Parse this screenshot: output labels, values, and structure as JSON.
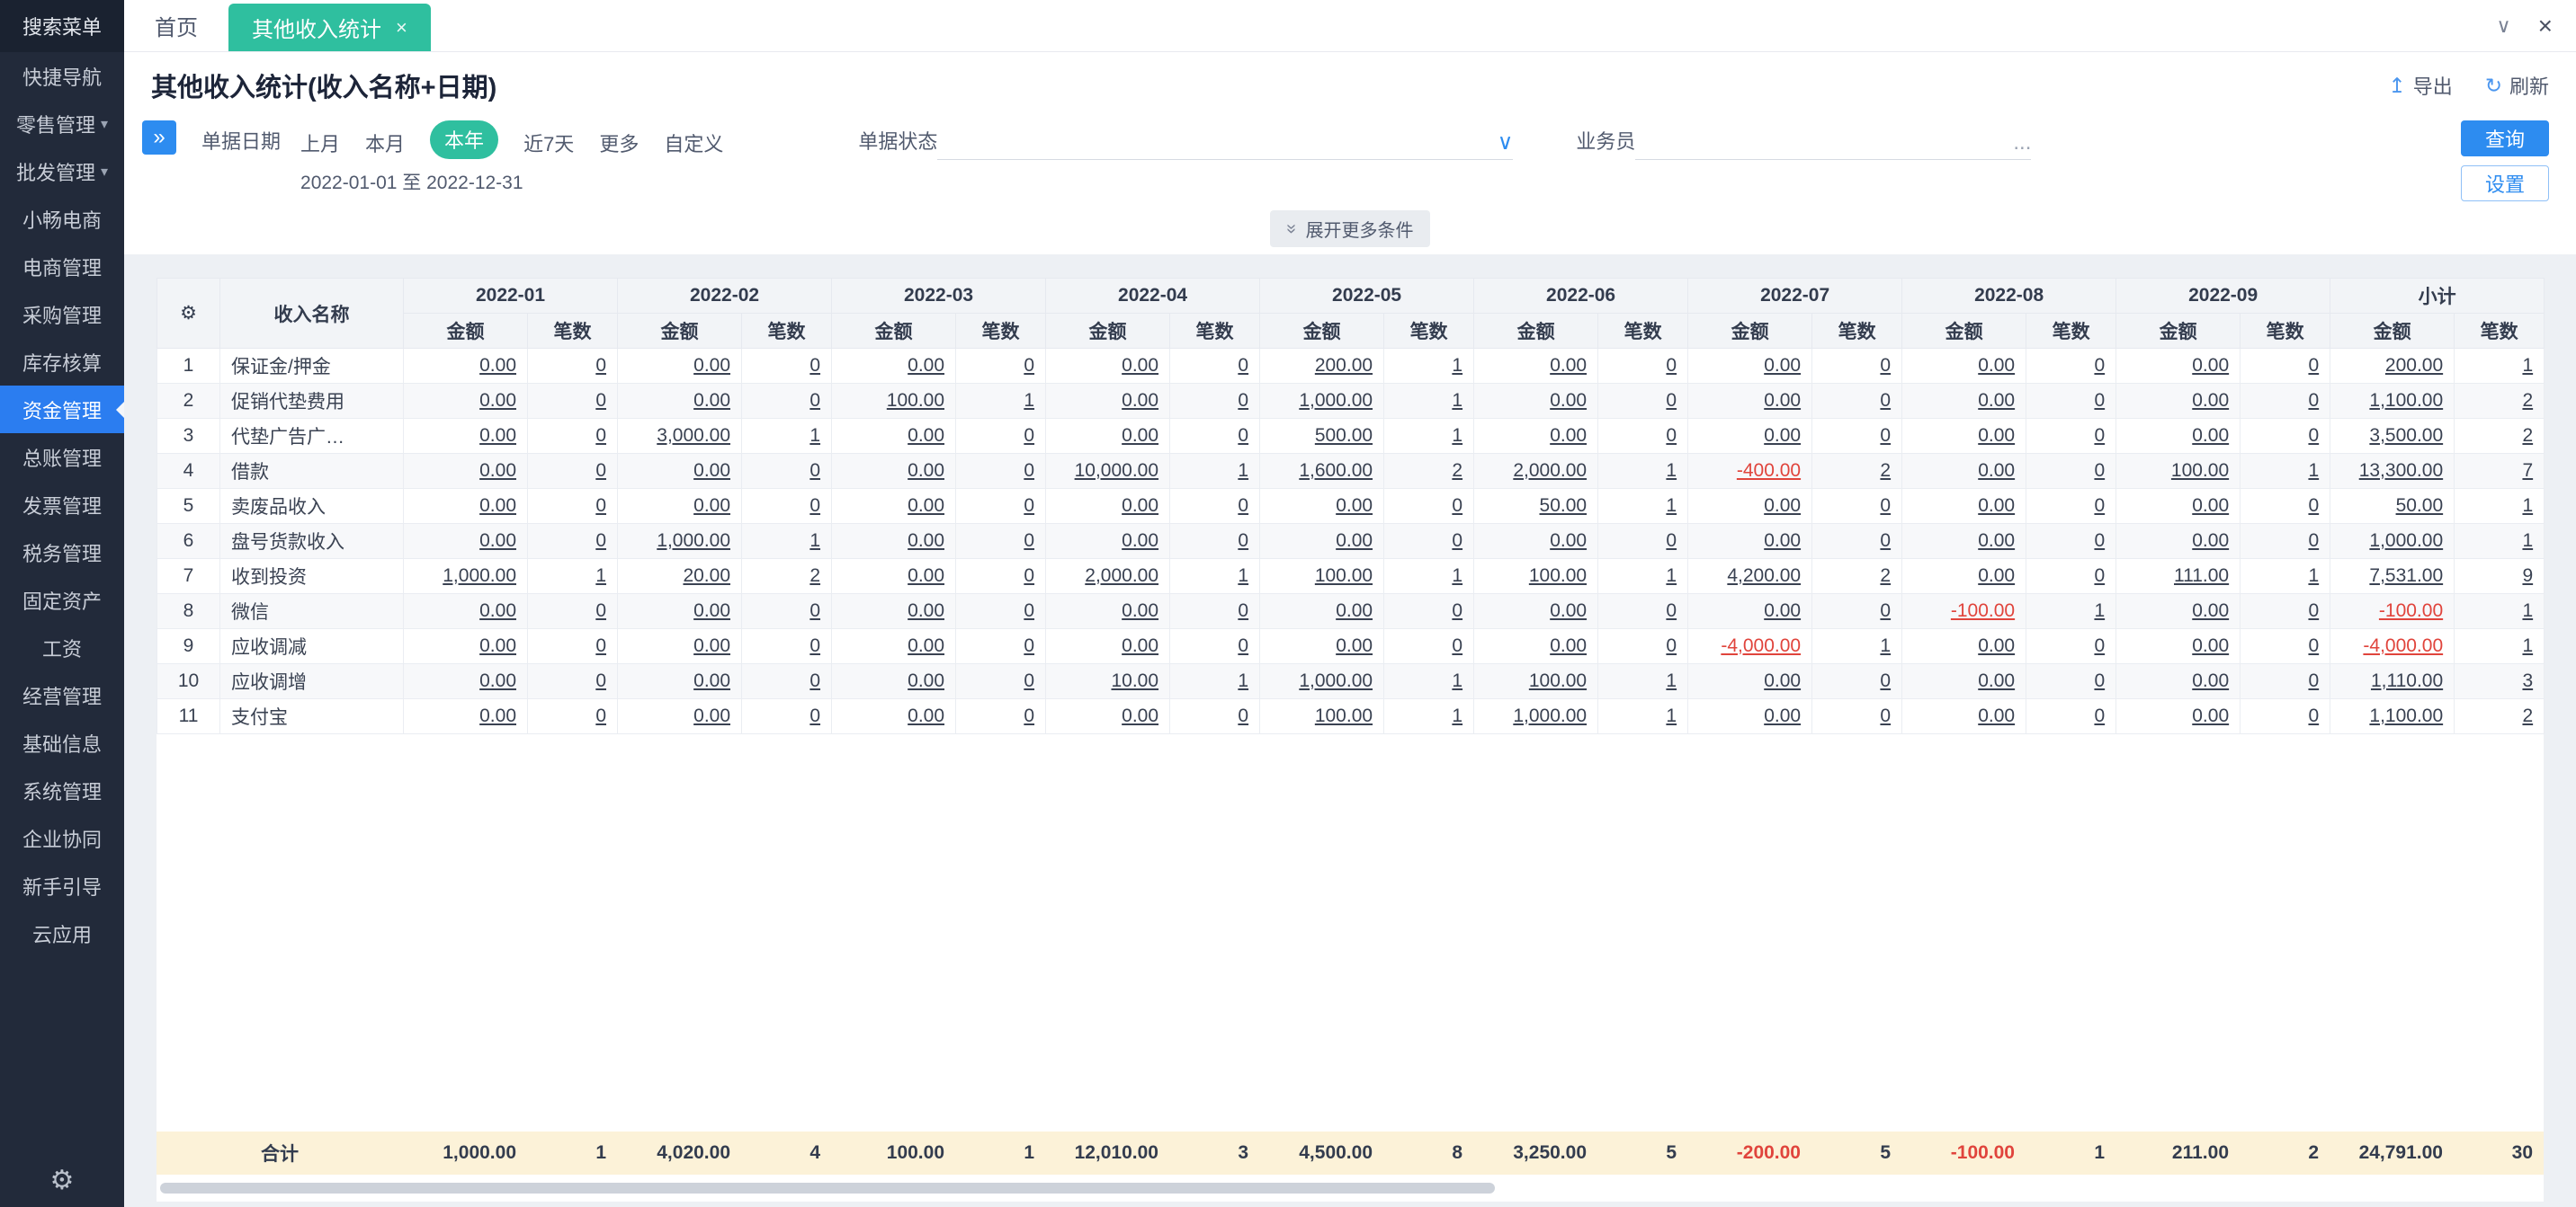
{
  "colors": {
    "primary": "#2d8cf0",
    "tab_green": "#2fbf9f",
    "negative": "#e0443c",
    "total_bg": "#fcf2d8",
    "sidebar_bg": "#222a3a"
  },
  "icons": {
    "gear": "⚙",
    "refresh": "↻",
    "export": "↥",
    "chevron_down": "∨",
    "caret_down": "▾",
    "close": "×",
    "collapse": "»",
    "double_chevron": "»",
    "ellipsis": "..."
  },
  "sidebar": {
    "search_label": "搜索菜单",
    "items": [
      {
        "label": "快捷导航"
      },
      {
        "label": "零售管理",
        "caret": true
      },
      {
        "label": "批发管理",
        "caret": true
      },
      {
        "label": "小畅电商"
      },
      {
        "label": "电商管理"
      },
      {
        "label": "采购管理"
      },
      {
        "label": "库存核算"
      },
      {
        "label": "资金管理",
        "active": true
      },
      {
        "label": "总账管理"
      },
      {
        "label": "发票管理"
      },
      {
        "label": "税务管理"
      },
      {
        "label": "固定资产"
      },
      {
        "label": "工资"
      },
      {
        "label": "经营管理"
      },
      {
        "label": "基础信息"
      },
      {
        "label": "系统管理"
      },
      {
        "label": "企业协同"
      },
      {
        "label": "新手引导"
      },
      {
        "label": "云应用"
      }
    ]
  },
  "tabbar": {
    "home_tab": "首页",
    "active_tab": "其他收入统计"
  },
  "header": {
    "title": "其他收入统计(收入名称+日期)",
    "export_label": "导出",
    "refresh_label": "刷新"
  },
  "filters": {
    "date_label": "单据日期",
    "quick_options": [
      "上月",
      "本月",
      "本年",
      "近7天",
      "更多",
      "自定义"
    ],
    "active_quick": "本年",
    "date_range": "2022-01-01 至 2022-12-31",
    "status_label": "单据状态",
    "status_value": "",
    "salesman_label": "业务员",
    "salesman_value": "",
    "search_button": "查询",
    "settings_button": "设置",
    "expand_more_label": "展开更多条件"
  },
  "table": {
    "name_header": "收入名称",
    "amount_header": "金额",
    "count_header": "笔数",
    "months": [
      "2022-01",
      "2022-02",
      "2022-03",
      "2022-04",
      "2022-05",
      "2022-06",
      "2022-07",
      "2022-08",
      "2022-09",
      "小计"
    ],
    "rows": [
      {
        "name": "保证金/押金",
        "cells": [
          [
            "0.00",
            "0"
          ],
          [
            "0.00",
            "0"
          ],
          [
            "0.00",
            "0"
          ],
          [
            "0.00",
            "0"
          ],
          [
            "200.00",
            "1"
          ],
          [
            "0.00",
            "0"
          ],
          [
            "0.00",
            "0"
          ],
          [
            "0.00",
            "0"
          ],
          [
            "0.00",
            "0"
          ],
          [
            "200.00",
            "1"
          ]
        ]
      },
      {
        "name": "促销代垫费用",
        "cells": [
          [
            "0.00",
            "0"
          ],
          [
            "0.00",
            "0"
          ],
          [
            "100.00",
            "1"
          ],
          [
            "0.00",
            "0"
          ],
          [
            "1,000.00",
            "1"
          ],
          [
            "0.00",
            "0"
          ],
          [
            "0.00",
            "0"
          ],
          [
            "0.00",
            "0"
          ],
          [
            "0.00",
            "0"
          ],
          [
            "1,100.00",
            "2"
          ]
        ]
      },
      {
        "name": "代垫广告广…",
        "cells": [
          [
            "0.00",
            "0"
          ],
          [
            "3,000.00",
            "1"
          ],
          [
            "0.00",
            "0"
          ],
          [
            "0.00",
            "0"
          ],
          [
            "500.00",
            "1"
          ],
          [
            "0.00",
            "0"
          ],
          [
            "0.00",
            "0"
          ],
          [
            "0.00",
            "0"
          ],
          [
            "0.00",
            "0"
          ],
          [
            "3,500.00",
            "2"
          ]
        ]
      },
      {
        "name": "借款",
        "cells": [
          [
            "0.00",
            "0"
          ],
          [
            "0.00",
            "0"
          ],
          [
            "0.00",
            "0"
          ],
          [
            "10,000.00",
            "1"
          ],
          [
            "1,600.00",
            "2"
          ],
          [
            "2,000.00",
            "1"
          ],
          [
            "-400.00",
            "2"
          ],
          [
            "0.00",
            "0"
          ],
          [
            "100.00",
            "1"
          ],
          [
            "13,300.00",
            "7"
          ]
        ]
      },
      {
        "name": "卖废品收入",
        "cells": [
          [
            "0.00",
            "0"
          ],
          [
            "0.00",
            "0"
          ],
          [
            "0.00",
            "0"
          ],
          [
            "0.00",
            "0"
          ],
          [
            "0.00",
            "0"
          ],
          [
            "50.00",
            "1"
          ],
          [
            "0.00",
            "0"
          ],
          [
            "0.00",
            "0"
          ],
          [
            "0.00",
            "0"
          ],
          [
            "50.00",
            "1"
          ]
        ]
      },
      {
        "name": "盘号货款收入",
        "cells": [
          [
            "0.00",
            "0"
          ],
          [
            "1,000.00",
            "1"
          ],
          [
            "0.00",
            "0"
          ],
          [
            "0.00",
            "0"
          ],
          [
            "0.00",
            "0"
          ],
          [
            "0.00",
            "0"
          ],
          [
            "0.00",
            "0"
          ],
          [
            "0.00",
            "0"
          ],
          [
            "0.00",
            "0"
          ],
          [
            "1,000.00",
            "1"
          ]
        ]
      },
      {
        "name": "收到投资",
        "cells": [
          [
            "1,000.00",
            "1"
          ],
          [
            "20.00",
            "2"
          ],
          [
            "0.00",
            "0"
          ],
          [
            "2,000.00",
            "1"
          ],
          [
            "100.00",
            "1"
          ],
          [
            "100.00",
            "1"
          ],
          [
            "4,200.00",
            "2"
          ],
          [
            "0.00",
            "0"
          ],
          [
            "111.00",
            "1"
          ],
          [
            "7,531.00",
            "9"
          ]
        ]
      },
      {
        "name": "微信",
        "cells": [
          [
            "0.00",
            "0"
          ],
          [
            "0.00",
            "0"
          ],
          [
            "0.00",
            "0"
          ],
          [
            "0.00",
            "0"
          ],
          [
            "0.00",
            "0"
          ],
          [
            "0.00",
            "0"
          ],
          [
            "0.00",
            "0"
          ],
          [
            "-100.00",
            "1"
          ],
          [
            "0.00",
            "0"
          ],
          [
            "-100.00",
            "1"
          ]
        ]
      },
      {
        "name": "应收调减",
        "cells": [
          [
            "0.00",
            "0"
          ],
          [
            "0.00",
            "0"
          ],
          [
            "0.00",
            "0"
          ],
          [
            "0.00",
            "0"
          ],
          [
            "0.00",
            "0"
          ],
          [
            "0.00",
            "0"
          ],
          [
            "-4,000.00",
            "1"
          ],
          [
            "0.00",
            "0"
          ],
          [
            "0.00",
            "0"
          ],
          [
            "-4,000.00",
            "1"
          ]
        ]
      },
      {
        "name": "应收调增",
        "cells": [
          [
            "0.00",
            "0"
          ],
          [
            "0.00",
            "0"
          ],
          [
            "0.00",
            "0"
          ],
          [
            "10.00",
            "1"
          ],
          [
            "1,000.00",
            "1"
          ],
          [
            "100.00",
            "1"
          ],
          [
            "0.00",
            "0"
          ],
          [
            "0.00",
            "0"
          ],
          [
            "0.00",
            "0"
          ],
          [
            "1,110.00",
            "3"
          ]
        ]
      },
      {
        "name": "支付宝",
        "cells": [
          [
            "0.00",
            "0"
          ],
          [
            "0.00",
            "0"
          ],
          [
            "0.00",
            "0"
          ],
          [
            "0.00",
            "0"
          ],
          [
            "100.00",
            "1"
          ],
          [
            "1,000.00",
            "1"
          ],
          [
            "0.00",
            "0"
          ],
          [
            "0.00",
            "0"
          ],
          [
            "0.00",
            "0"
          ],
          [
            "1,100.00",
            "2"
          ]
        ]
      }
    ],
    "total_label": "合计",
    "totals": [
      [
        "1,000.00",
        "1"
      ],
      [
        "4,020.00",
        "4"
      ],
      [
        "100.00",
        "1"
      ],
      [
        "12,010.00",
        "3"
      ],
      [
        "4,500.00",
        "8"
      ],
      [
        "3,250.00",
        "5"
      ],
      [
        "-200.00",
        "5"
      ],
      [
        "-100.00",
        "1"
      ],
      [
        "211.00",
        "2"
      ],
      [
        "24,791.00",
        "30"
      ]
    ]
  }
}
